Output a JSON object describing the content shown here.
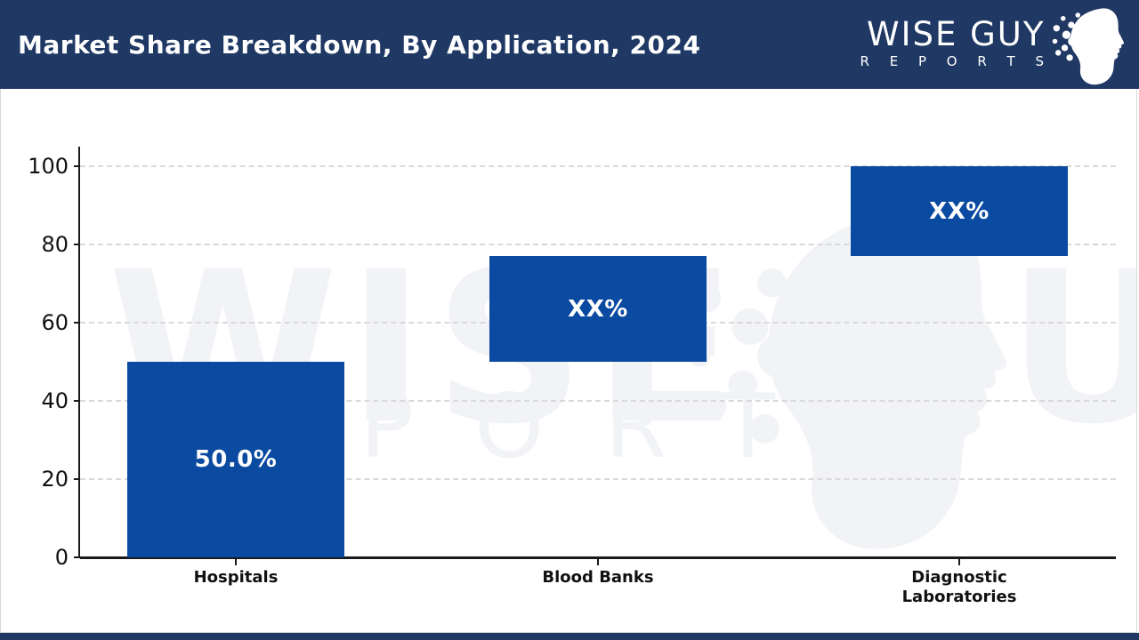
{
  "header": {
    "title": "Market Share Breakdown, By Application, 2024",
    "logo": {
      "line1": "WISE GUY",
      "line2": "R E P O R T S"
    }
  },
  "watermark": {
    "line1": "WISE GUY",
    "line2": "REPORTS"
  },
  "colors": {
    "header_navy": "#1F3864",
    "bar_blue": "#0A4AA0",
    "gridline_grey": "#d9d9d9",
    "axis_black": "#1a1a1a",
    "watermark_grey": "#f2f3f6"
  },
  "chart_data": {
    "type": "bar",
    "subtype": "floating-waterfall",
    "title": "Market Share Breakdown, By Application, 2024",
    "categories": [
      "Hospitals",
      "Blood Banks",
      "Diagnostic Laboratories"
    ],
    "bars": [
      {
        "category": "Hospitals",
        "start": 0,
        "end": 50,
        "label": "50.0%"
      },
      {
        "category": "Blood Banks",
        "start": 50,
        "end": 77,
        "label": "XX%"
      },
      {
        "category": "Diagnostic Laboratories",
        "start": 77,
        "end": 100,
        "label": "XX%"
      }
    ],
    "xlabel": "",
    "ylabel": "",
    "yticks": [
      0,
      20,
      40,
      60,
      80,
      100
    ],
    "ylim": [
      0,
      105
    ],
    "grid": "horizontal-dashed",
    "legend": "none"
  }
}
